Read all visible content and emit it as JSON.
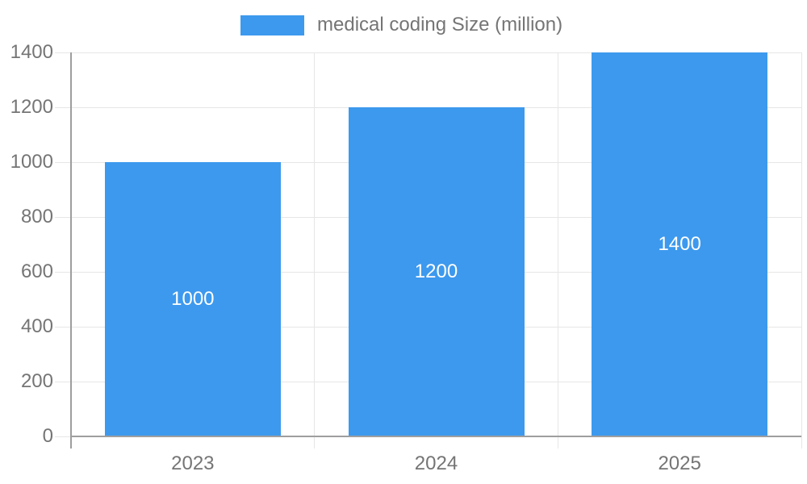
{
  "chart_data": {
    "type": "bar",
    "title": "",
    "legend": "medical coding Size (million)",
    "legend_position": "top",
    "categories": [
      "2023",
      "2024",
      "2025"
    ],
    "series": [
      {
        "name": "medical coding Size (million)",
        "values": [
          1000,
          1200,
          1400
        ]
      }
    ],
    "data_labels": [
      "1000",
      "1200",
      "1400"
    ],
    "xlabel": "",
    "ylabel": "",
    "ylim": [
      0,
      1400
    ],
    "yticks": [
      0,
      200,
      400,
      600,
      800,
      1000,
      1200,
      1400
    ],
    "grid": true,
    "colors": {
      "bar": "#3C99EE",
      "text": "#757575",
      "grid": "#e6e6e6",
      "axis": "#9e9e9e",
      "value_label": "#ffffff",
      "background": "#ffffff"
    }
  }
}
